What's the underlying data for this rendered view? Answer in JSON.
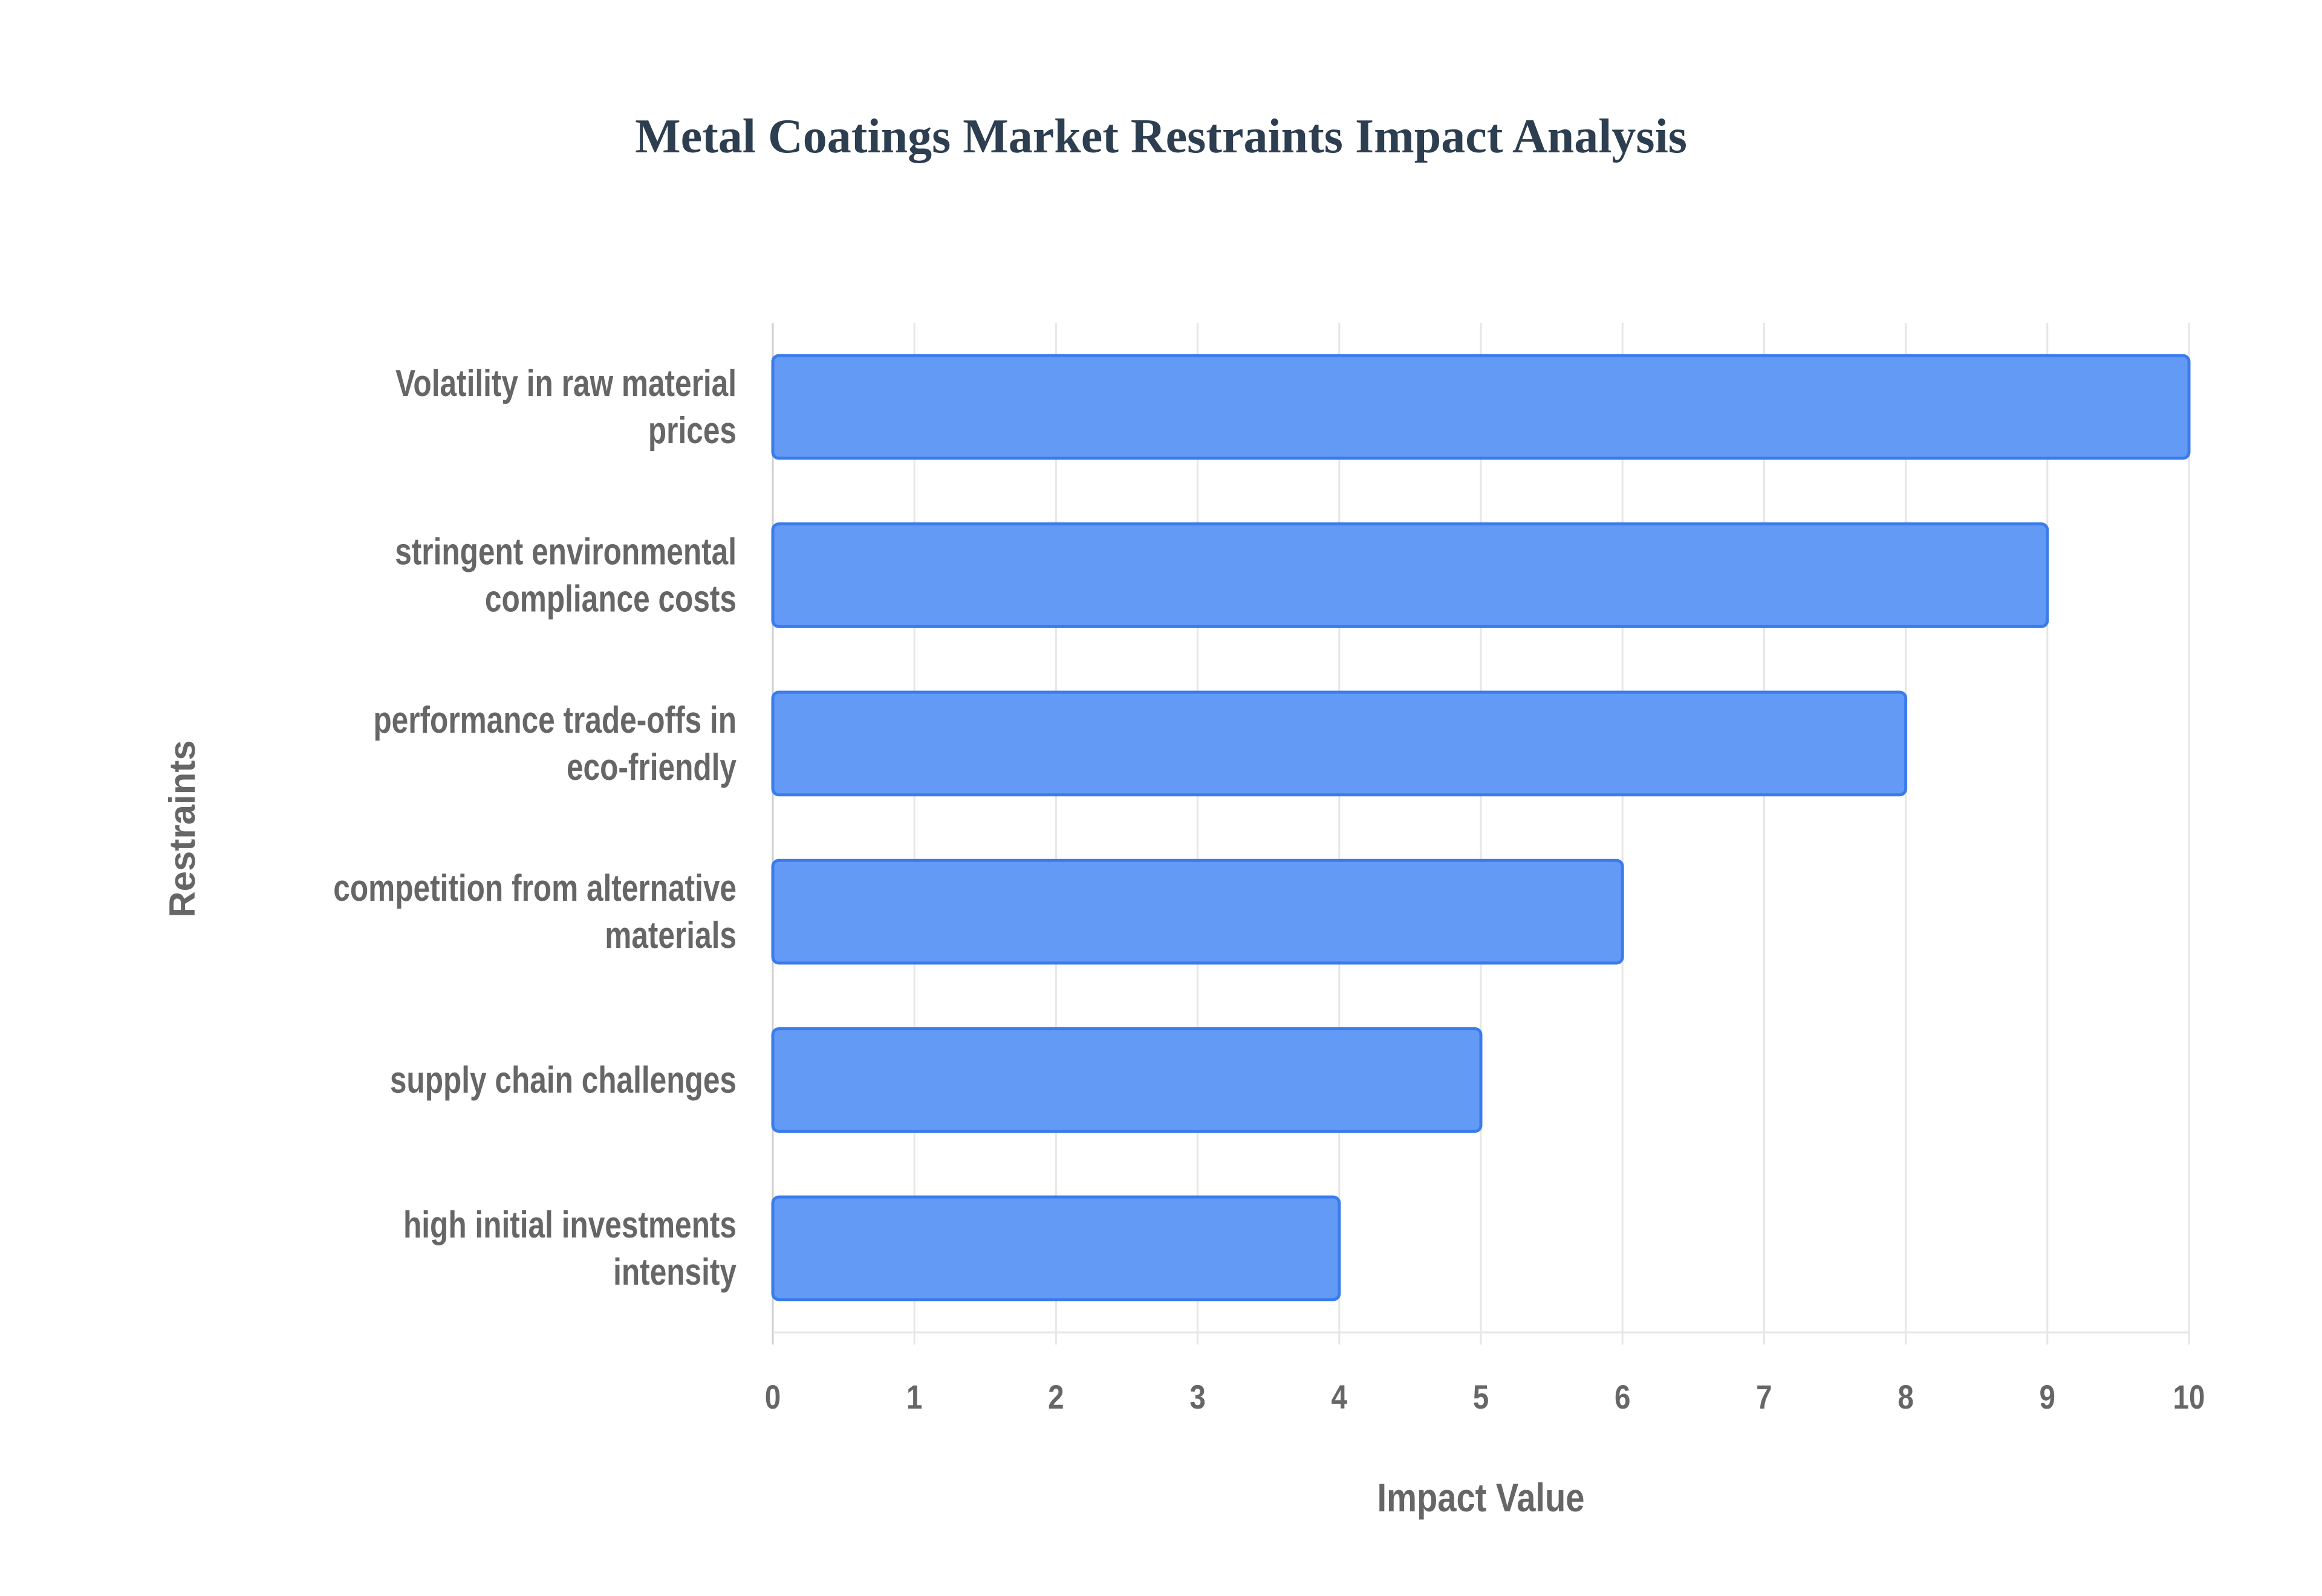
{
  "chart_data": {
    "type": "bar",
    "orientation": "horizontal",
    "title": "Metal Coatings Market Restraints Impact Analysis",
    "xlabel": "Impact Value",
    "ylabel": "Restraints",
    "categories": [
      [
        "Volatility in raw material",
        "prices"
      ],
      [
        "stringent environmental",
        "compliance costs"
      ],
      [
        "performance trade-offs in",
        "eco-friendly"
      ],
      [
        "competition from alternative",
        "materials"
      ],
      [
        "supply chain challenges"
      ],
      [
        "high initial investments",
        "intensity"
      ]
    ],
    "values": [
      10,
      9,
      8,
      6,
      5,
      4
    ],
    "xlim": [
      0,
      10
    ],
    "xticks": [
      "0",
      "1",
      "2",
      "3",
      "4",
      "5",
      "6",
      "7",
      "8",
      "9",
      "10"
    ],
    "grid": true,
    "legend": "none",
    "colors": {
      "bar_fill": "#639af5",
      "bar_border": "#3b7cec",
      "grid": "#e6e6e6",
      "title": "#2c3e50",
      "text": "#666666"
    }
  }
}
